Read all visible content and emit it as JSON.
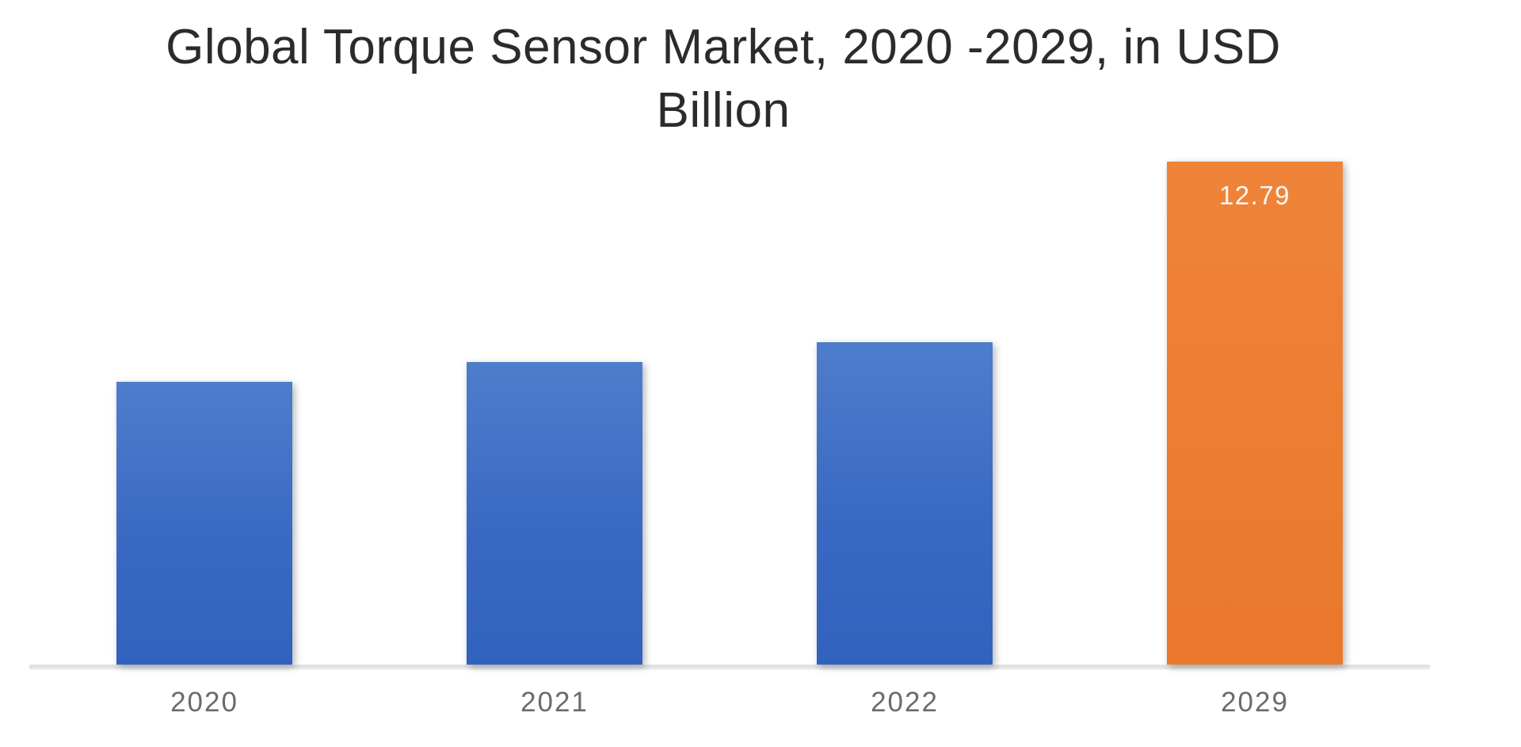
{
  "title": {
    "line1": "Global Torque Sensor Market, 2020 -2029, in USD",
    "line2": "Billion"
  },
  "colors": {
    "bar_blue": "#4472C4",
    "bar_orange": "#ED7D31",
    "axis_line": "#E2E2E2",
    "tick_label": "#6B6B6B",
    "title_text": "#2B2B2B",
    "data_label_text": "#FAF9F6",
    "background": "#FFFFFF"
  },
  "chart_data": {
    "type": "bar",
    "title": "Global Torque Sensor Market, 2020 -2029, in USD Billion",
    "unit": "USD Billion",
    "categories": [
      "2020",
      "2021",
      "2022",
      "2029"
    ],
    "values": [
      7.2,
      7.7,
      8.2,
      12.79
    ],
    "data_labels": [
      "",
      "",
      "",
      "12.79"
    ],
    "bar_colors": [
      "#4472C4",
      "#4472C4",
      "#4472C4",
      "#ED7D31"
    ],
    "xlabel": "",
    "ylabel": "",
    "ylim": [
      0,
      13
    ],
    "grid": false,
    "legend": false,
    "y_axis_visible": false
  }
}
